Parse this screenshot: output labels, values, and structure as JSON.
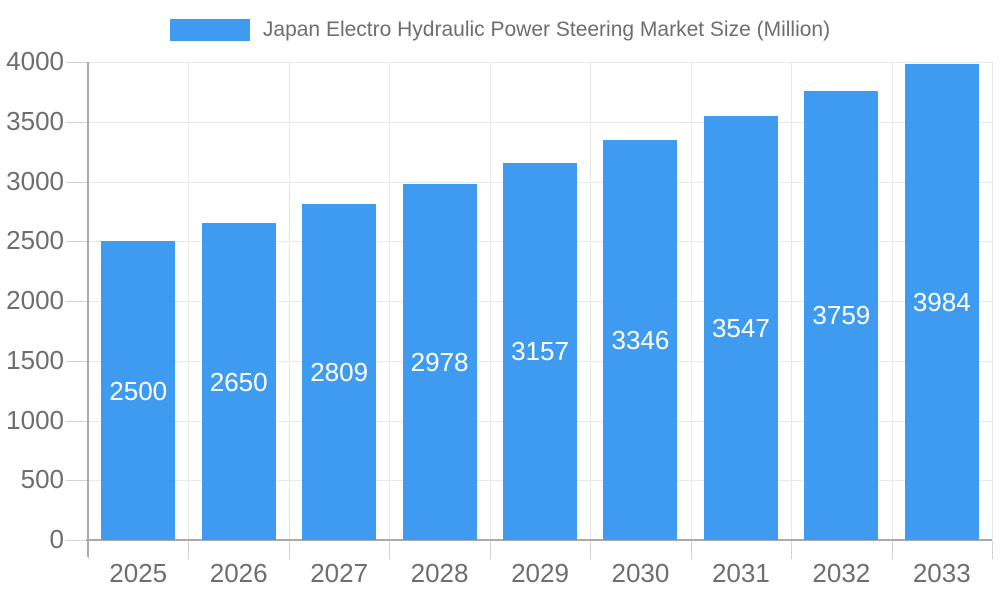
{
  "chart_data": {
    "type": "bar",
    "title": "Japan Electro Hydraulic Power Steering Market Size (Million)",
    "legend_position": "top",
    "categories": [
      "2025",
      "2026",
      "2027",
      "2028",
      "2029",
      "2030",
      "2031",
      "2032",
      "2033"
    ],
    "series": [
      {
        "name": "Japan Electro Hydraulic Power Steering Market Size (Million)",
        "values": [
          2500,
          2650,
          2809,
          2978,
          3157,
          3346,
          3547,
          3759,
          3984
        ]
      }
    ],
    "xlabel": "",
    "ylabel": "",
    "ylim": [
      0,
      4000
    ],
    "ytick_step": 500,
    "ytick_labels": [
      "0",
      "500",
      "1000",
      "1500",
      "2000",
      "2500",
      "3000",
      "3500",
      "4000"
    ],
    "grid": true,
    "value_labels_shown": true,
    "colors": {
      "bar": "#3E9BEF",
      "value_label": "#ffffff",
      "axis_text": "#6e6e6e",
      "legend_text": "#6e6e6e",
      "gridline": "#e8e8e8",
      "axis_line": "#aaaaaa"
    }
  }
}
